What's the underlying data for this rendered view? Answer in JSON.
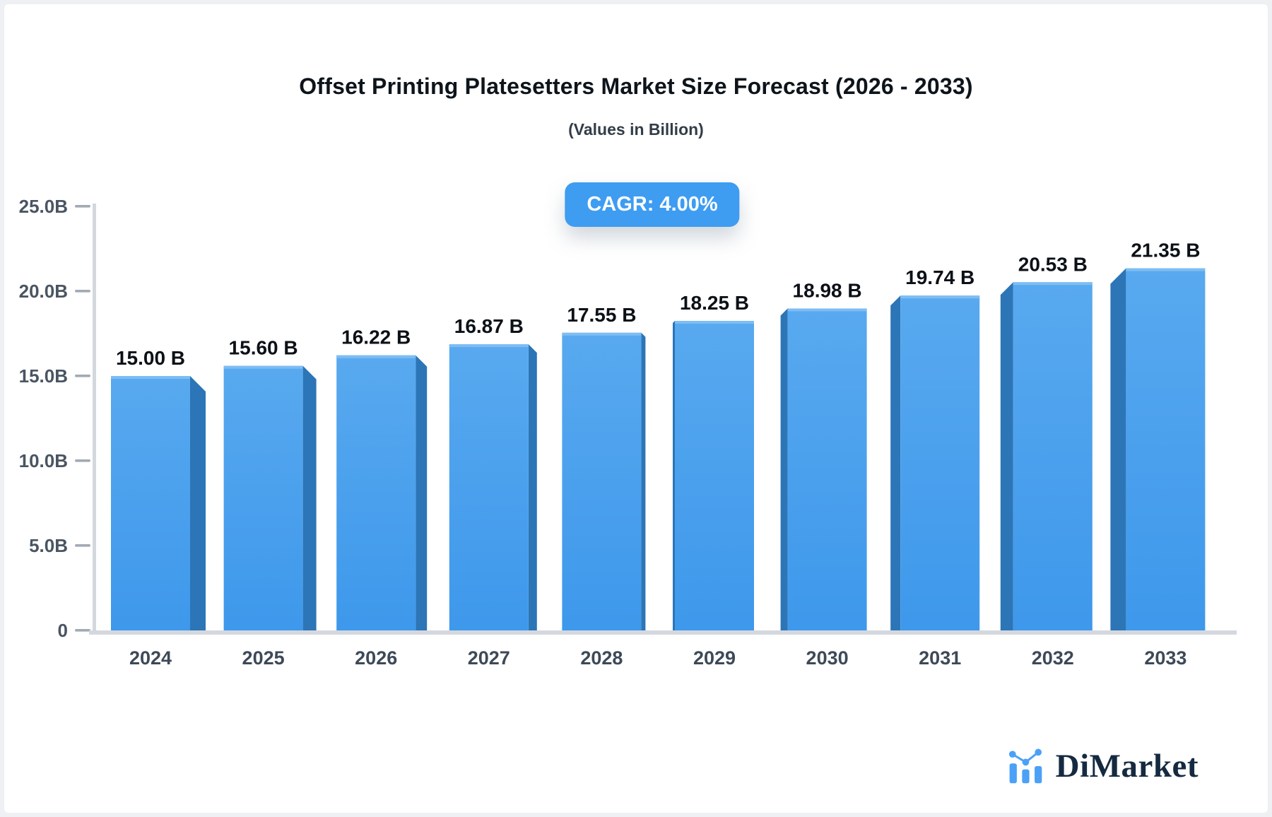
{
  "header": {
    "title": "Offset Printing Platesetters Market Size Forecast (2026 - 2033)",
    "subtitle": "(Values in Billion)",
    "cagr_badge": "CAGR: 4.00%"
  },
  "footer": {
    "brand": "DiMarket",
    "brand_icon": "bar-line-chart-icon"
  },
  "colors": {
    "bar_face_top": "#58A9EF",
    "bar_face_bottom": "#3E98EB",
    "bar_top_highlight": "#7EBDF3",
    "bar_side": "#2C75B6",
    "axis_line": "#D4D8DE",
    "tick_dash": "#A2AAB4",
    "y_label": "#4A5562",
    "x_label": "#3D4957",
    "value_label": "#0C1117",
    "badge_bg": "#3E9CF1",
    "badge_text": "#FFFFFF",
    "brand_icon": "#4BA1F6",
    "brand_text": "#152A40"
  },
  "chart_data": {
    "type": "bar",
    "title": "Offset Printing Platesetters Market Size Forecast (2026 - 2033)",
    "subtitle": "(Values in Billion)",
    "annotation": "CAGR: 4.00%",
    "categories": [
      "2024",
      "2025",
      "2026",
      "2027",
      "2028",
      "2029",
      "2030",
      "2031",
      "2032",
      "2033"
    ],
    "values": [
      15.0,
      15.6,
      16.22,
      16.87,
      17.55,
      18.25,
      18.98,
      19.74,
      20.53,
      21.35
    ],
    "value_labels": [
      "15.00 B",
      "15.60 B",
      "16.22 B",
      "16.87 B",
      "17.55 B",
      "18.25 B",
      "18.98 B",
      "19.74 B",
      "20.53 B",
      "21.35 B"
    ],
    "xlabel": "",
    "ylabel": "",
    "ylim": [
      0,
      25
    ],
    "yticks": [
      {
        "value": 25,
        "label": "25.0B"
      },
      {
        "value": 20,
        "label": "20.0B"
      },
      {
        "value": 15,
        "label": "15.0B"
      },
      {
        "value": 10,
        "label": "10.0B"
      },
      {
        "value": 5,
        "label": "5.0B"
      },
      {
        "value": 0,
        "label": "0"
      }
    ],
    "grid": false,
    "legend": null,
    "style": "3d-bars"
  }
}
